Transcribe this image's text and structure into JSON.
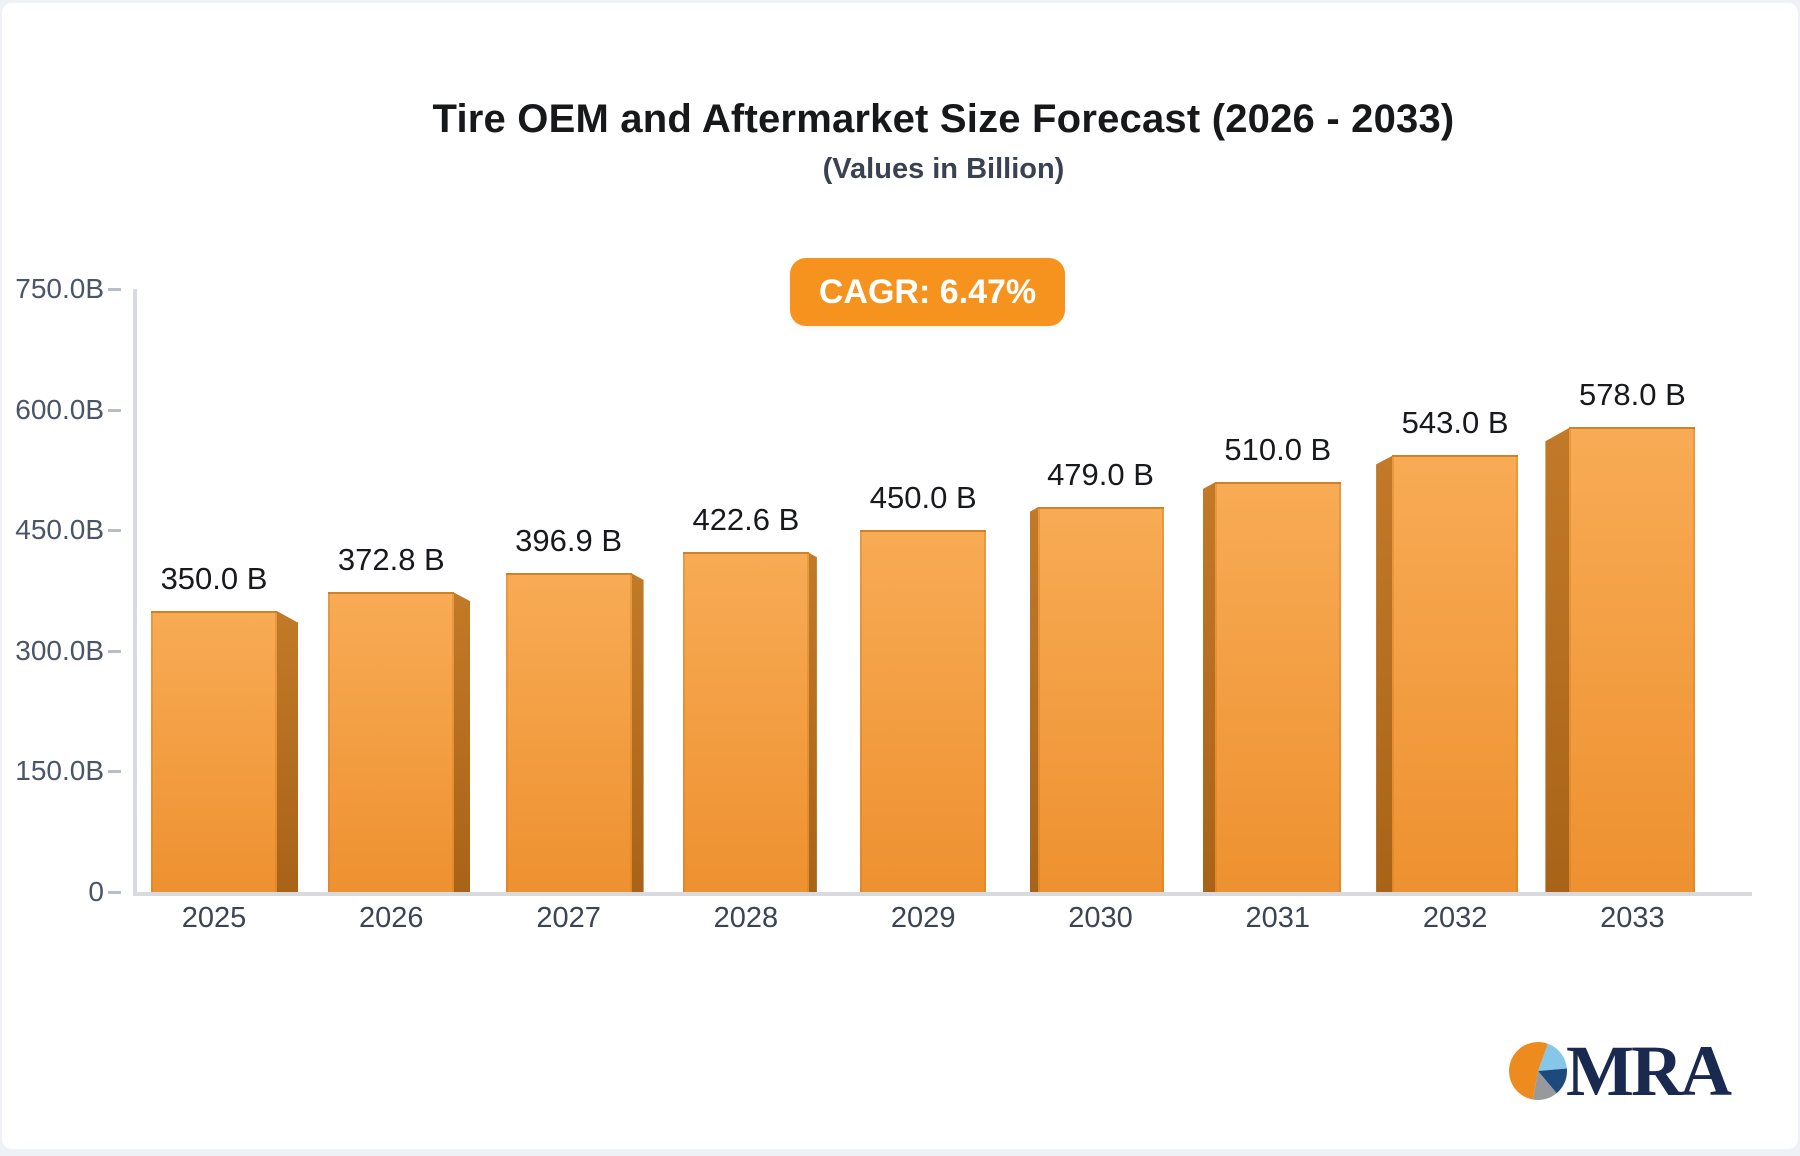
{
  "page": {
    "background": "#eef1f5",
    "card_background": "#ffffff"
  },
  "header": {
    "title": "Tire OEM and Aftermarket Size Forecast (2026 - 2033)",
    "subtitle": "(Values in Billion)",
    "cagr_badge": "CAGR: 6.47%"
  },
  "chart_data": {
    "type": "bar",
    "title": "Tire OEM and Aftermarket Size Forecast (2026 - 2033)",
    "subtitle": "(Values in Billion)",
    "unit": "Billion",
    "cagr": "6.47%",
    "grid": false,
    "legend": "none",
    "bar_style": "3d-perspective-orange",
    "categories": [
      "2025",
      "2026",
      "2027",
      "2028",
      "2029",
      "2030",
      "2031",
      "2032",
      "2033"
    ],
    "values": [
      350.0,
      372.8,
      396.9,
      422.6,
      450.0,
      479.0,
      510.0,
      543.0,
      578.0
    ],
    "value_labels": [
      "350.0 B",
      "372.8 B",
      "396.9 B",
      "422.6 B",
      "450.0 B",
      "479.0 B",
      "510.0 B",
      "543.0 B",
      "578.0 B"
    ],
    "xlabel": "",
    "ylabel": "",
    "ylim": [
      0,
      750
    ],
    "yticks": [
      {
        "value": 750,
        "label": "750.0B"
      },
      {
        "value": 600,
        "label": "600.0B"
      },
      {
        "value": 450,
        "label": "450.0B"
      },
      {
        "value": 300,
        "label": "300.0B"
      },
      {
        "value": 150,
        "label": "150.0B"
      },
      {
        "value": 0,
        "label": "0"
      }
    ]
  },
  "colors": {
    "badge": "#f6921e",
    "bar_top": "#f8ab55",
    "bar_bottom": "#ee9130",
    "side_top": "#c27a28",
    "side_bottom": "#a96318",
    "axis": "#d8dadd",
    "logo_text": "#1a2950",
    "logo_orange": "#ee8b1f",
    "logo_blue": "#86c6e9",
    "logo_navy": "#1c4a7d",
    "logo_gray": "#97999c"
  },
  "logo": {
    "text": "MRA"
  }
}
